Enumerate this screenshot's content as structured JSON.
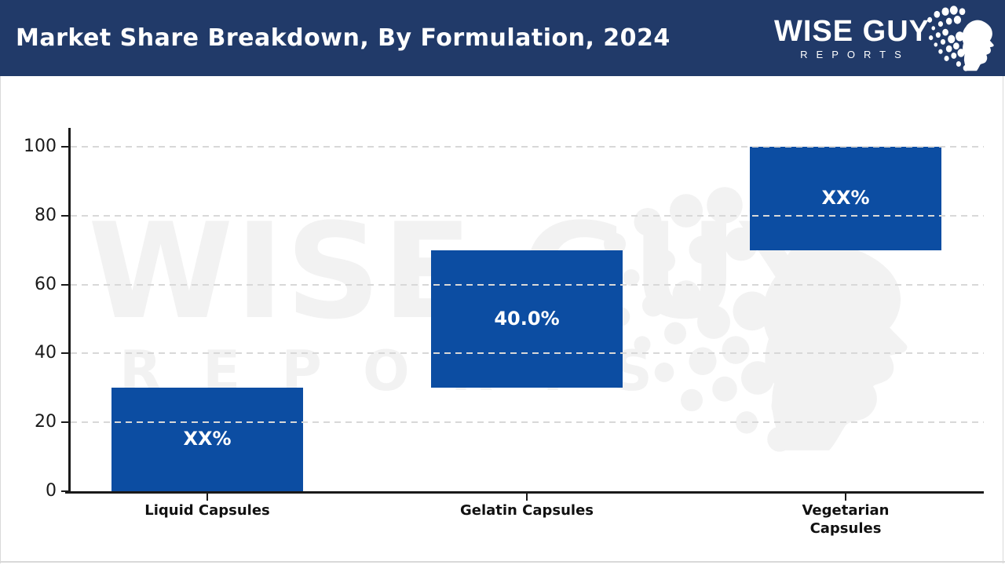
{
  "header": {
    "title": "Market Share Breakdown, By Formulation, 2024",
    "logo": {
      "name": "WISE GUY",
      "sub": "REPORTS"
    }
  },
  "watermark": {
    "name": "WISE GUY",
    "sub": "R E P O R T S"
  },
  "chart_data": {
    "type": "bar",
    "variant": "floating-waterfall",
    "title": "Market Share Breakdown, By Formulation, 2024",
    "categories": [
      "Liquid Capsules",
      "Gelatin Capsules",
      "Vegetarian\nCapsules"
    ],
    "series": [
      {
        "name": "Market Share",
        "segments": [
          {
            "category": "Liquid Capsules",
            "start": 0,
            "end": 30,
            "value_label": "XX%"
          },
          {
            "category": "Gelatin Capsules",
            "start": 30,
            "end": 70,
            "value_label": "40.0%"
          },
          {
            "category": "Vegetarian Capsules",
            "start": 70,
            "end": 100,
            "value_label": "XX%"
          }
        ]
      }
    ],
    "xlabel": "",
    "ylabel": "",
    "ylim": [
      0,
      100
    ],
    "yticks": [
      0,
      20,
      40,
      60,
      80,
      100
    ],
    "grid": "horizontal-dashed",
    "legend": "none"
  },
  "colors": {
    "header_bg": "#213a69",
    "bar": "#0c4da2",
    "bar_label": "#ffffff",
    "grid": "#d8d8d8",
    "axis": "#1a1a1a",
    "watermark": "#f2f2f2",
    "page_border": "#d9d9d9"
  }
}
